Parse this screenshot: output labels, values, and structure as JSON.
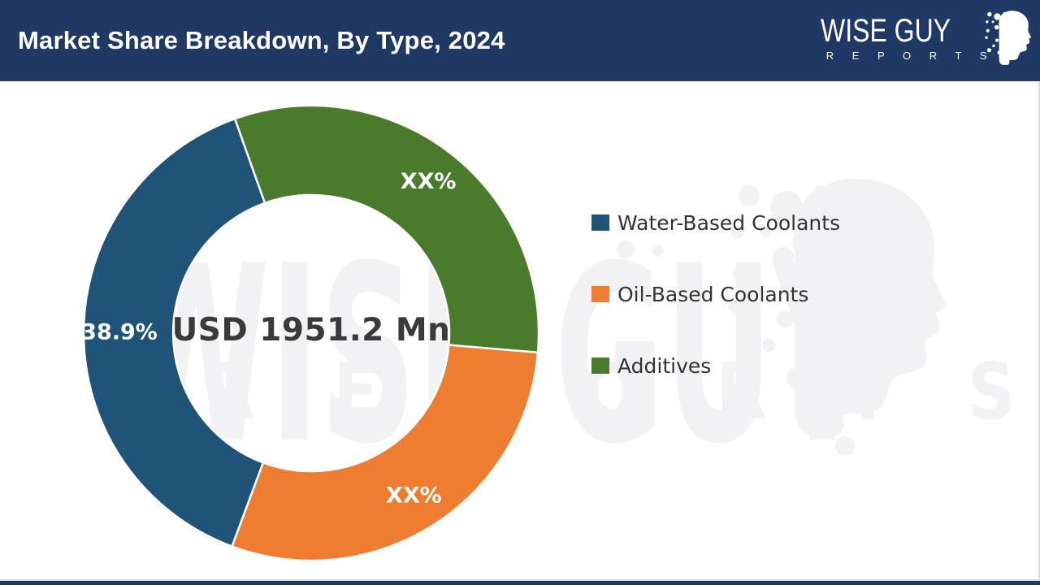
{
  "header": {
    "title": "Market Share Breakdown, By Type, 2024",
    "bg_color": "#203864",
    "logo": {
      "brand": "WISE GUY",
      "sub": "R E P O R T S"
    }
  },
  "watermark": {
    "line1": "WISE GUY",
    "line2": "R E P O R T S"
  },
  "chart_data": {
    "type": "pie",
    "subtype": "donut",
    "title": "Market Share Breakdown, By Type, 2024",
    "center_label": "USD 1951.2 Mn",
    "categories": [
      "Water-Based Coolants",
      "Oil-Based Coolants",
      "Additives"
    ],
    "values_pct": [
      38.9,
      29.3,
      31.8
    ],
    "slice_labels": [
      "38.9%",
      "XX%",
      "XX%"
    ],
    "colors": [
      "#1F5478",
      "#EE7D31",
      "#4A7B2C"
    ],
    "start_angle_deg": 109.6,
    "direction": "counterclockwise",
    "legend_position": "right",
    "slice_label_color": "#FFFFFF",
    "center_label_color": "#3A3A3A"
  },
  "footer": {
    "bar_color": "#203864"
  }
}
